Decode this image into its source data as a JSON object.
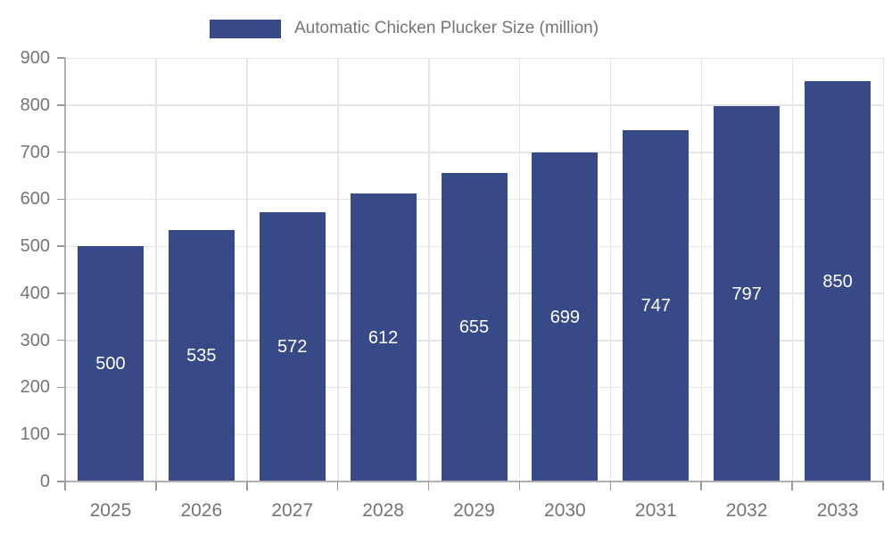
{
  "chart_data": {
    "type": "bar",
    "title": "Automatic Chicken Plucker Size (million)",
    "legend": {
      "label": "Automatic Chicken Plucker Size (million)",
      "position": "top"
    },
    "categories": [
      "2025",
      "2026",
      "2027",
      "2028",
      "2029",
      "2030",
      "2031",
      "2032",
      "2033"
    ],
    "values": [
      500,
      535,
      572,
      612,
      655,
      699,
      747,
      797,
      850
    ],
    "value_labels": [
      "500",
      "535",
      "572",
      "612",
      "655",
      "699",
      "747",
      "797",
      "850"
    ],
    "xlabel": "",
    "ylabel": "",
    "ylim": [
      0,
      900
    ],
    "ytick_interval": 100,
    "ytick_labels": [
      "0",
      "100",
      "200",
      "300",
      "400",
      "500",
      "600",
      "700",
      "800",
      "900"
    ],
    "grid": true,
    "grid_vertical": true,
    "colors": {
      "bar": "#374a87",
      "bar_value_text": "#ffffff",
      "axis_text": "#757575",
      "grid": "#e5e5e5",
      "axis_line": "#b0b0b0",
      "tick": "#9a9a9a",
      "legend_text": "#757575"
    }
  }
}
